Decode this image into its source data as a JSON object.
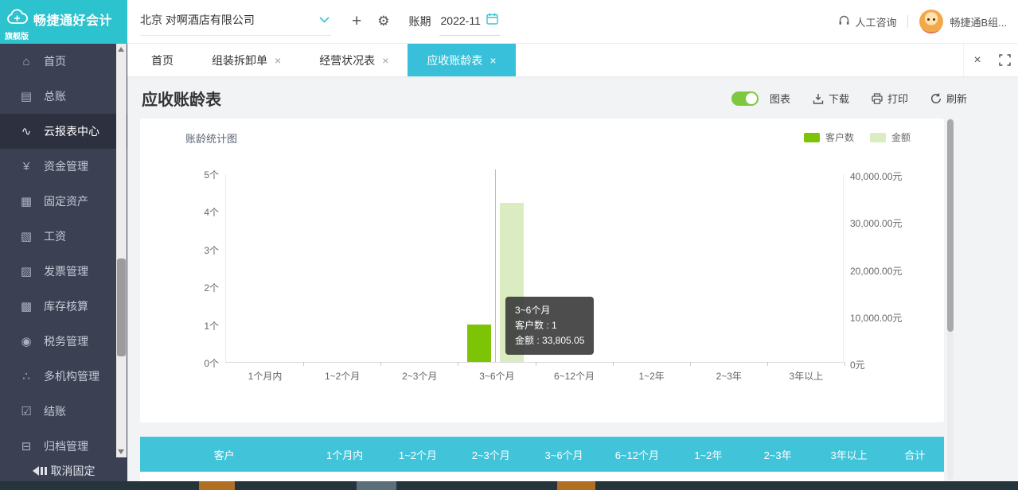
{
  "brand": {
    "name": "畅捷通好会计",
    "edition": "旗舰版"
  },
  "header": {
    "company": "北京 对啊酒店有限公司",
    "plus": "+",
    "gear": "⚙",
    "period_label": "账期",
    "period_value": "2022-11",
    "consult_label": "人工咨询",
    "username": "畅捷通B组..."
  },
  "tabs": {
    "items": [
      {
        "label": "首页",
        "closable": false,
        "active": false
      },
      {
        "label": "组装拆卸单",
        "closable": true,
        "active": false
      },
      {
        "label": "经营状况表",
        "closable": true,
        "active": false
      },
      {
        "label": "应收账龄表",
        "closable": true,
        "active": true
      }
    ],
    "close_all": "×",
    "fullscreen": "fullscreen"
  },
  "sidebar": {
    "items": [
      {
        "label": "首页",
        "icon": "home-icon",
        "active": false
      },
      {
        "label": "总账",
        "icon": "ledger-icon",
        "active": false
      },
      {
        "label": "云报表中心",
        "icon": "cloud-report-icon",
        "active": true
      },
      {
        "label": "资金管理",
        "icon": "funds-icon",
        "active": false
      },
      {
        "label": "固定资产",
        "icon": "fixed-assets-icon",
        "active": false
      },
      {
        "label": "工资",
        "icon": "payroll-icon",
        "active": false
      },
      {
        "label": "发票管理",
        "icon": "invoice-icon",
        "active": false
      },
      {
        "label": "库存核算",
        "icon": "inventory-icon",
        "active": false
      },
      {
        "label": "税务管理",
        "icon": "tax-icon",
        "active": false
      },
      {
        "label": "多机构管理",
        "icon": "multi-org-icon",
        "active": false
      },
      {
        "label": "结账",
        "icon": "closing-icon",
        "active": false
      },
      {
        "label": "归档管理",
        "icon": "archive-icon",
        "active": false
      }
    ],
    "collapse_label": "取消固定"
  },
  "page": {
    "title": "应收账龄表",
    "toggle_label": "图表",
    "download_label": "下载",
    "print_label": "打印",
    "refresh_label": "刷新"
  },
  "chart_data": {
    "type": "bar",
    "title": "账龄统计图",
    "categories": [
      "1个月内",
      "1~2个月",
      "2~3个月",
      "3~6个月",
      "6~12个月",
      "1~2年",
      "2~3年",
      "3年以上"
    ],
    "series": [
      {
        "name": "客户数",
        "axis": "left",
        "unit": "个",
        "color": "#7cc405",
        "values": [
          0,
          0,
          0,
          1,
          0,
          0,
          0,
          0
        ]
      },
      {
        "name": "金额",
        "axis": "right",
        "unit": "元",
        "color": "#dcecc1",
        "values": [
          0,
          0,
          0,
          33805.05,
          0,
          0,
          0,
          0
        ]
      }
    ],
    "left_axis": {
      "min": 0,
      "max": 5,
      "ticks": [
        "5个",
        "4个",
        "3个",
        "2个",
        "1个",
        "0个"
      ]
    },
    "right_axis": {
      "min": 0,
      "max": 40000,
      "ticks": [
        "40,000.00元",
        "30,000.00元",
        "20,000.00元",
        "10,000.00元",
        "0元"
      ]
    },
    "grid": false,
    "legend_position": "top-right",
    "highlighted_category": "3~6个月"
  },
  "tooltip": {
    "title": "3~6个月",
    "line1": "客户数 : 1",
    "line2": "金额 : 33,805.05"
  },
  "table": {
    "columns": [
      "客户",
      "1个月内",
      "1~2个月",
      "2~3个月",
      "3~6个月",
      "6~12个月",
      "1~2年",
      "2~3年",
      "3年以上",
      "合计"
    ]
  },
  "colors": {
    "brand_cyan": "#2cc2ce",
    "active_tab_cyan": "#38bfd9",
    "table_header_cyan": "#41c4d9",
    "sidebar_bg": "#3b4053",
    "toggle_green": "#7dc83f",
    "bar_customers_green": "#7cc405",
    "bar_amount_light_green": "#dcecc1",
    "taskbar_orange": "#b06f23",
    "taskbar_slate": "#5c707a"
  }
}
